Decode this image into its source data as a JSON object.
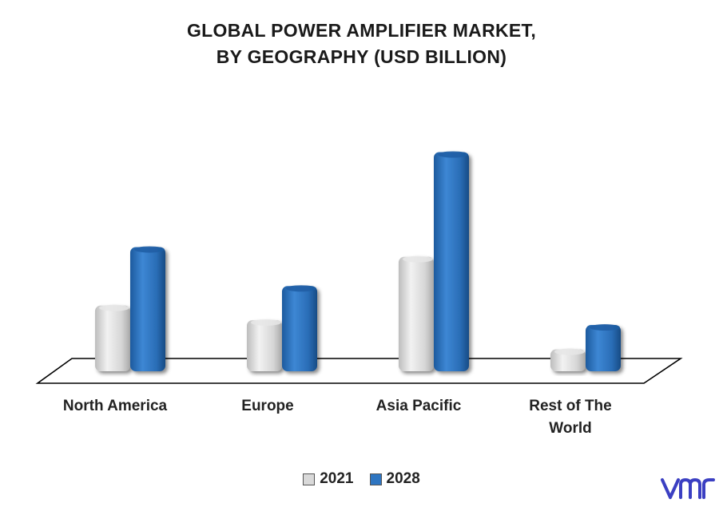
{
  "chart_data": {
    "type": "bar",
    "title_lines": [
      "GLOBAL POWER AMPLIFIER MARKET,",
      "BY GEOGRAPHY (USD BILLION)"
    ],
    "categories": [
      "North America",
      "Europe",
      "Asia Pacific",
      "Rest of The World"
    ],
    "series": [
      {
        "name": "2021",
        "values": [
          2.7,
          2.1,
          4.7,
          0.9
        ],
        "color": "#d9d9d9"
      },
      {
        "name": "2028",
        "values": [
          5.1,
          3.5,
          9.0,
          1.9
        ],
        "color": "#2e75c1"
      }
    ],
    "ylim": [
      0,
      10
    ],
    "grid": false,
    "legend_position": "bottom"
  },
  "logo": {
    "name": "vmr-logo",
    "color": "#3b3fc2"
  }
}
